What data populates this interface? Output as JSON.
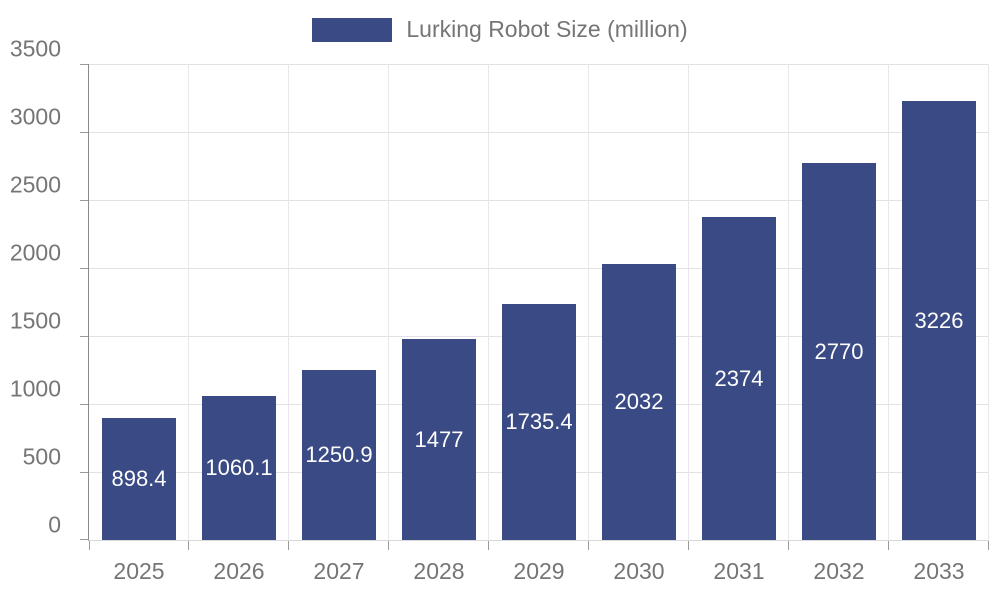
{
  "legend": {
    "label": "Lurking Robot Size (million)"
  },
  "colors": {
    "bar": "#3A4A84",
    "axis_text": "#757575",
    "value_label": "#FFFFFF",
    "grid_h": "#E2E2E6",
    "grid_v": "#E8E8EC",
    "axis_line": "#8A8A8A"
  },
  "chart_data": {
    "type": "bar",
    "title": "Lurking Robot Size (million)",
    "categories": [
      "2025",
      "2026",
      "2027",
      "2028",
      "2029",
      "2030",
      "2031",
      "2032",
      "2033"
    ],
    "values": [
      898.4,
      1060.1,
      1250.9,
      1477,
      1735.4,
      2032,
      2374,
      2770,
      3226
    ],
    "value_labels": [
      "898.4",
      "1060.1",
      "1250.9",
      "1477",
      "1735.4",
      "2032",
      "2374",
      "2770",
      "3226"
    ],
    "xlabel": "",
    "ylabel": "",
    "ylim": [
      0,
      3500
    ],
    "yticks": [
      0,
      500,
      1000,
      1500,
      2000,
      2500,
      3000,
      3500
    ],
    "grid": true,
    "legend_position": "top"
  }
}
